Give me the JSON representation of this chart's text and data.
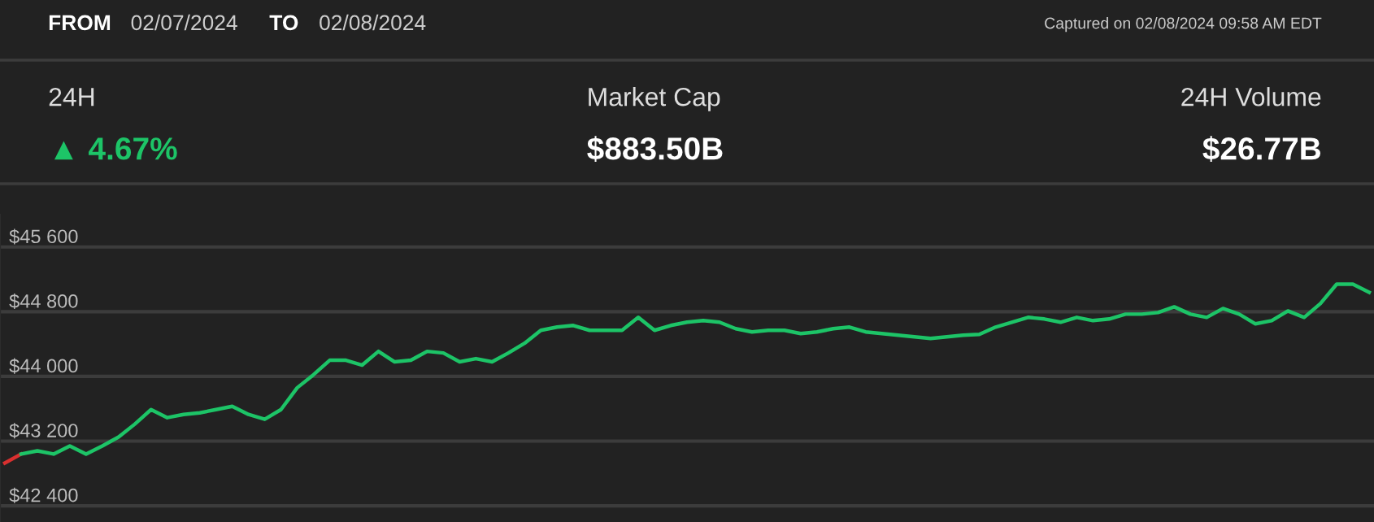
{
  "chart_data": {
    "type": "line",
    "annotations": [
      "FROM",
      "02/07/2024",
      "TO",
      "02/08/2024",
      "Captured on 02/08/2024 09:58 AM EDT",
      "24H",
      "▲ 4.67%",
      "Market Cap",
      "$883.50B",
      "24H Volume",
      "$26.77B"
    ],
    "categories": [
      null,
      null,
      null,
      null,
      null,
      null,
      null,
      null,
      null,
      null,
      null,
      null,
      null,
      null,
      null,
      null,
      null,
      null,
      null,
      null,
      null,
      null,
      null,
      null,
      null,
      null,
      null,
      null,
      null,
      null,
      null,
      null,
      null,
      null,
      null,
      null,
      null,
      null,
      null,
      null,
      null,
      null,
      null,
      null,
      null,
      null,
      null,
      null,
      null,
      null,
      null,
      null,
      null,
      null,
      null,
      null,
      null,
      null,
      null,
      null,
      null,
      null,
      null,
      null,
      null,
      null,
      null,
      null,
      null,
      null,
      null,
      null,
      null,
      null,
      null,
      null,
      null,
      null,
      null,
      null,
      null,
      null,
      null,
      null,
      null
    ],
    "series": [
      {
        "color": "#d9302f",
        "values": [
          42930,
          43040,
          null,
          null,
          null,
          null,
          null,
          null,
          null,
          null,
          null,
          null,
          null,
          null,
          null,
          null,
          null,
          null,
          null,
          null,
          null,
          null,
          null,
          null,
          null,
          null,
          null,
          null,
          null,
          null,
          null,
          null,
          null,
          null,
          null,
          null,
          null,
          null,
          null,
          null,
          null,
          null,
          null,
          null,
          null,
          null,
          null,
          null,
          null,
          null,
          null,
          null,
          null,
          null,
          null,
          null,
          null,
          null,
          null,
          null,
          null,
          null,
          null,
          null,
          null,
          null,
          null,
          null,
          null,
          null,
          null,
          null,
          null,
          null,
          null,
          null,
          null,
          null,
          null,
          null,
          null,
          null,
          null,
          null,
          null
        ]
      },
      {
        "color": "#1dc467",
        "values": [
          null,
          43040,
          43080,
          43040,
          43140,
          43040,
          43140,
          43250,
          43410,
          43590,
          43490,
          43530,
          43550,
          43590,
          43630,
          43530,
          43470,
          43590,
          43860,
          44020,
          44200,
          44200,
          44140,
          44310,
          44180,
          44200,
          44310,
          44290,
          44180,
          44220,
          44180,
          44290,
          44410,
          44570,
          44610,
          44630,
          44570,
          44570,
          44570,
          44730,
          44570,
          44630,
          44670,
          44690,
          44670,
          44590,
          44550,
          44570,
          44570,
          44530,
          44550,
          44590,
          44610,
          44550,
          44530,
          44510,
          44490,
          44470,
          44490,
          44510,
          44520,
          44610,
          44670,
          44730,
          44710,
          44670,
          44730,
          44690,
          44710,
          44770,
          44770,
          44790,
          44860,
          44770,
          44730,
          44840,
          44770,
          44650,
          44690,
          44810,
          44730,
          44900,
          45140,
          45140,
          45040
        ]
      }
    ],
    "ylim": [
      42200,
      46000
    ],
    "yticks": [
      {
        "value": 42400,
        "label": "$42 400"
      },
      {
        "value": 43200,
        "label": "$43 200"
      },
      {
        "value": 44000,
        "label": "$44 000"
      },
      {
        "value": 44800,
        "label": "$44 800"
      },
      {
        "value": 45600,
        "label": "$45 600"
      }
    ],
    "grid": "y",
    "tick_labels": "y",
    "legend": false
  }
}
